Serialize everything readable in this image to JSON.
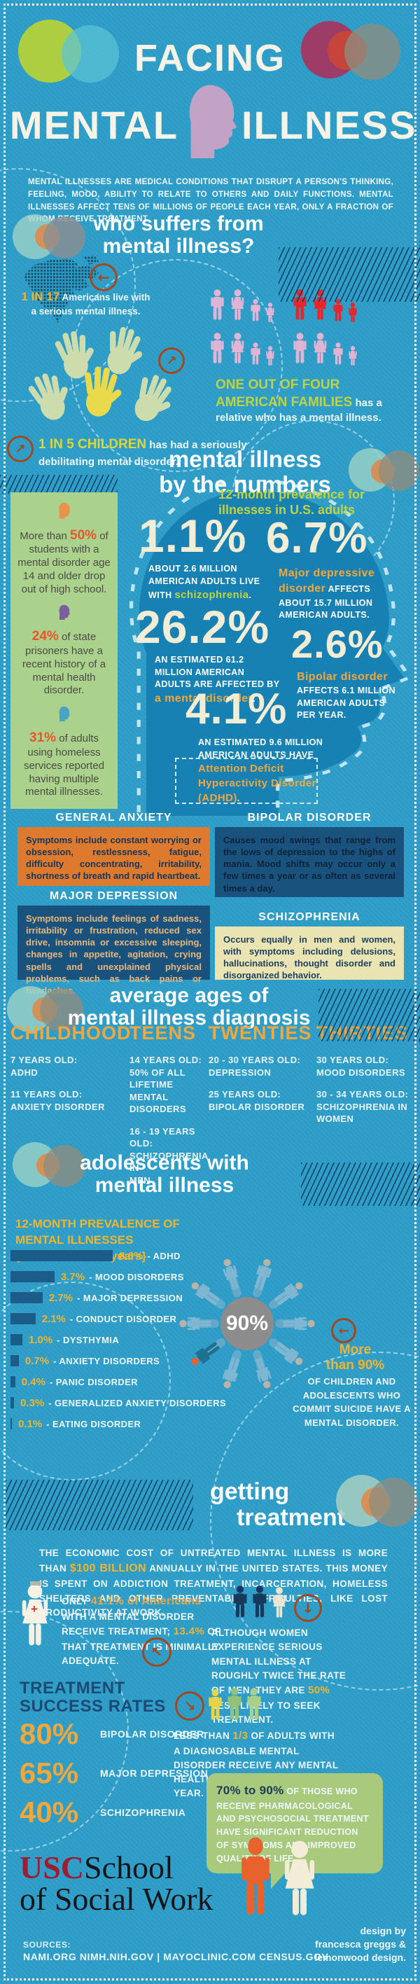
{
  "header": {
    "title_word1": "FACING",
    "title_word2": "MENTAL",
    "title_word3": "ILLNESS",
    "intro": "MENTAL ILLNESSES ARE MEDICAL CONDITIONS THAT DISRUPT A PERSON'S THINKING, FEELING, MOOD, ABILITY TO RELATE TO OTHERS AND DAILY FUNCTIONS. MENTAL ILLNESSES AFFECT TENS OF MILLIONS OF PEOPLE EACH YEAR, ONLY A FRACTION OF WHOM RECEIVE TREATMENT."
  },
  "who_suffers": {
    "heading": "who suffers from\nmental illness?",
    "one_in_17": {
      "highlight": "1 IN 17",
      "rest": " Americans live with a serious mental illness."
    },
    "families": {
      "highlight": "ONE OUT OF FOUR\nAMERICAN FAMILIES",
      "rest": " has a relative who has a mental illness."
    },
    "families_grid": {
      "rows": 2,
      "cols": 2,
      "red_index": 1,
      "member_color": "#e2b4d4",
      "red_color": "#e8242c"
    },
    "children": {
      "highlight": "1 IN 5 CHILDREN",
      "rest": " has had a seriously debilitating mental disorder."
    }
  },
  "by_numbers": {
    "heading": "mental illness\nby the numbers",
    "subheading": "12-month prevalence for\nillnesses in U.S. adults",
    "sidebar": [
      {
        "pre": "More than ",
        "highlight": "50%",
        "post": " of students with a mental disorder age 14 and older drop out of high school.",
        "icon": "orange-head"
      },
      {
        "pre": "",
        "highlight": "24%",
        "post": " of state prisoners have a recent history of a mental health disorder.",
        "icon": "purple-head"
      },
      {
        "pre": "",
        "highlight": "31%",
        "post": " of adults using homeless services reported having multiple mental illnesses.",
        "icon": "blue-head"
      }
    ],
    "stats": [
      {
        "value": "1.1%",
        "pre": "ABOUT 2.6 MILLION AMERICAN ADULTS LIVE WITH ",
        "highlight": "schizophrenia",
        "post": "."
      },
      {
        "value": "6.7%",
        "pre": "",
        "highlight": "Major depressive disorder",
        "post": " AFFECTS ABOUT 15.7 MILLION AMERICAN ADULTS."
      },
      {
        "value": "26.2%",
        "pre": "AN ESTIMATED 61.2 MILLION AMERICAN ADULTS ARE AFFECTED BY ",
        "highlight": "a mental disorder",
        "post": "."
      },
      {
        "value": "2.6%",
        "pre": "",
        "highlight": "Bipolar disorder",
        "post": " AFFECTS 6.1 MILLION AMERICAN ADULTS PER YEAR."
      },
      {
        "value": "4.1%",
        "pre": "AN ESTIMATED 9.6 MILLION AMERICAN ADULTS HAVE ",
        "highlight": "Attention Deficit Hyperactivity Disorder (ADHD)",
        "post": "."
      }
    ]
  },
  "disorders": [
    {
      "title": "GENERAL ANXIETY",
      "text": "Symptoms include constant worrying or obsession, restlessness, fatigue, difficulty concentrating, irritability, shortness of breath and rapid heartbeat."
    },
    {
      "title": "BIPOLAR DISORDER",
      "text": "Causes mood swings that range from the lows of depression to the highs of mania. Mood shifts may occur only a few times a year or as often as several times a day."
    },
    {
      "title": "MAJOR DEPRESSION",
      "text": "Symptoms include feelings of sadness, irritability or frustration, reduced sex drive, insomnia or excessive sleeping, changes in appetite, agitation, crying spells and unexplained physical problems, such as back pains or headaches."
    },
    {
      "title": "SCHIZOPHRENIA",
      "text": "Occurs equally in men and women, with symptoms including delusions, hallucinations, thought disorder and disorganized behavior."
    }
  ],
  "ages": {
    "heading": "average ages of\nmental illness diagnosis",
    "columns": [
      {
        "label": "CHILDHOOD",
        "items": [
          "7 YEARS OLD:\nADHD",
          "11 YEARS OLD:\nANXIETY DISORDER"
        ]
      },
      {
        "label": "TEENS",
        "items": [
          "14 YEARS OLD:\n50% OF ALL\nLIFETIME MENTAL\nDISORDERS",
          "16 - 19 YEARS OLD:\nSCHIZOPHRENIA IN\nMEN"
        ]
      },
      {
        "label": "TWENTIES",
        "items": [
          "20 - 30 YEARS OLD:\nDEPRESSION",
          "25 YEARS OLD:\nBIPOLAR DISORDER"
        ]
      },
      {
        "label": "THIRTIES",
        "items": [
          "30 YEARS OLD:\nMOOD DISORDERS",
          "30 - 34 YEARS OLD:\nSCHIZOPHRENIA IN\nWOMEN"
        ]
      }
    ]
  },
  "adolescents": {
    "heading": "adolescents with\nmental illness",
    "chart_title": "12-MONTH PREVALENCE OF\nMENTAL ILLNESSES\n{children 8 to 15 years}",
    "center_value": "90%",
    "radial": {
      "count": 10,
      "special_index": 9
    },
    "suicide": {
      "highlight": "More\nthan 90%",
      "rest": "OF CHILDREN AND ADOLESCENTS WHO COMMIT SUICIDE HAVE A MENTAL DISORDER."
    }
  },
  "chart_data": {
    "type": "bar",
    "orientation": "horizontal",
    "title": "12-MONTH PREVALENCE OF MENTAL ILLNESSES {children 8 to 15 years}",
    "categories": [
      "ADHD",
      "MOOD DISORDERS",
      "MAJOR DEPRESSION",
      "CONDUCT DISORDER",
      "DYSTHYMIA",
      "ANXIETY DISORDERS",
      "PANIC DISORDER",
      "GENERALIZED ANXIETY DISORDERS",
      "EATING DISORDER"
    ],
    "values": [
      8.6,
      3.7,
      2.7,
      2.1,
      1.0,
      0.7,
      0.4,
      0.3,
      0.1
    ],
    "value_labels": [
      "8.6%",
      "3.7%",
      "2.7%",
      "2.1%",
      "1.0%",
      "0.7%",
      "0.4%",
      "0.3%",
      "0.1%"
    ],
    "unit": "%",
    "bar_color": "#1c5c88",
    "xlim": [
      0,
      9
    ],
    "legend": "none",
    "grid": false
  },
  "treatment": {
    "heading_line1": "getting",
    "heading_line2": "treatment",
    "economic": {
      "pre": "THE ECONOMIC COST OF UNTREATED MENTAL ILLNESS IS MORE THAN ",
      "highlight": "$100 BILLION",
      "post": " ANNUALLY IN THE UNITED STATES. THIS MONEY IS SPENT ON ADDICTION TREATMENT, INCARCERATION, HOMELESS SHELTERS AND OTHER PREVENTABLE DIFFICULTIES, LIKE LOST PRODUCTIVITY AT WORK."
    },
    "receive": {
      "pre": "ONLY ",
      "h1": "41.1% of Americans",
      "mid": " WITH A MENTAL DISORDER RECEIVE TREATMENT; ",
      "h2": "13.4%",
      "post": " OF THAT TREATMENT IS MINIMALLY ADEQUATE."
    },
    "success_title": "TREATMENT\nSUCCESS RATES",
    "success": [
      {
        "value": "80%",
        "label": "BIPOLAR DISORDER"
      },
      {
        "value": "65%",
        "label": "MAJOR DEPRESSION"
      },
      {
        "value": "40%",
        "label": "SCHIZOPHRENIA"
      }
    ],
    "women": {
      "pre": "ALTHOUGH WOMEN EXPERIENCE SERIOUS MENTAL ILLNESS AT ROUGHLY TWICE THE RATE OF MEN, THEY ARE ",
      "highlight": "50%",
      "post": " LESS LIKELY TO SEEK TREATMENT."
    },
    "third": {
      "pre": "LESS THAN ",
      "highlight": "1/3",
      "post": " OF ADULTS WITH A DIAGNOSABLE MENTAL DISORDER RECEIVE ANY MENTAL HEALTH SERVICES IN A GIVEN YEAR."
    },
    "bubble": {
      "highlight": "70% to 90%",
      "post": " OF THOSE WHO RECEIVE PHARMACOLOGICAL AND PSYCHOSOCIAL TREATMENT HAVE SIGNIFICANT REDUCTION OF SYMPTOMS AND IMPROVED QUALITY OF LIFE."
    }
  },
  "footer": {
    "logo_usc": "USC",
    "logo_school": "School",
    "logo_line2": "of Social Work",
    "sources_label": "SOURCES:",
    "sources": "NAMI.ORG  NIMH.NIH.GOV | MAYOCLINIC.COM  CENSUS.GOV",
    "credit": "design by\nfrancesca greggs &\nlemonwood design."
  },
  "colors": {
    "background": "#2c9cc7",
    "head_blue": "#1781b3",
    "sidebar_green": "#abd28d",
    "bubble_green": "#a9c97c",
    "orange_box": "#dd7a2e",
    "navy_box": "#1a527e",
    "cream_box": "#eae4b2",
    "yellow_accent": "#f0b42f",
    "lime_accent": "#c0d33f",
    "orange_accent": "#f2a73d",
    "rust_arrow": "#a3471d",
    "red_accent": "#e8242c",
    "pink_figure": "#e2b4d4",
    "cream_number": "#f3edd5",
    "usc_red": "#9d1c31"
  }
}
